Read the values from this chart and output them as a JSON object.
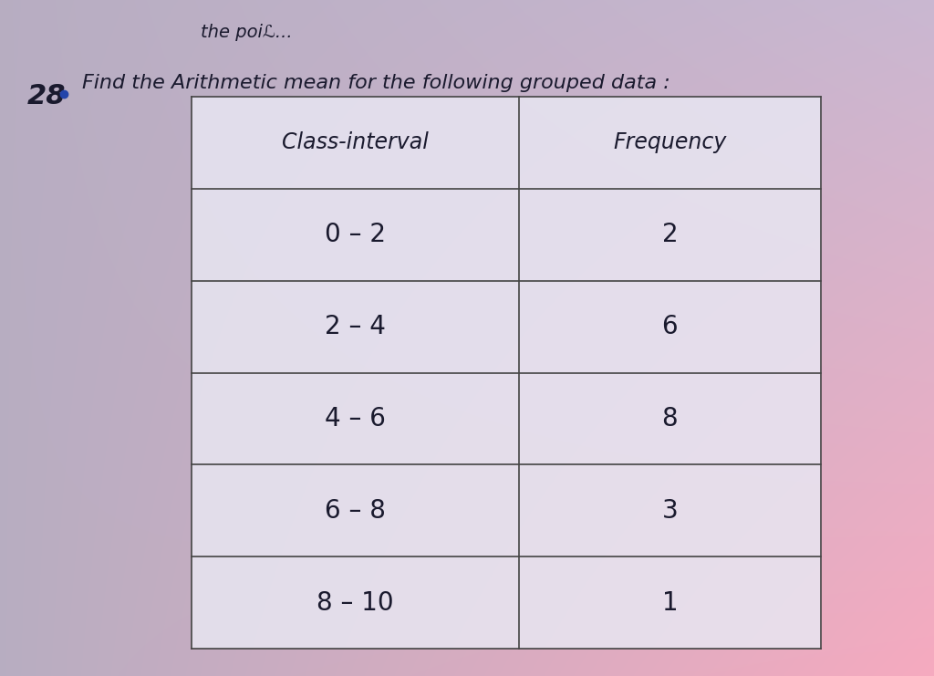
{
  "title_number": "28",
  "title_text": "Find the Arithmetic mean for the following grouped data :",
  "top_text": "the poi",
  "col1_header": "Class-interval",
  "col2_header": "Frequency",
  "rows": [
    [
      "0 – 2",
      "2"
    ],
    [
      "2 – 4",
      "6"
    ],
    [
      "4 – 6",
      "8"
    ],
    [
      "6 – 8",
      "3"
    ],
    [
      "8 – 10",
      "1"
    ]
  ],
  "page_bg": "#d8d4e8",
  "page_bg_left": "#bfbad8",
  "table_bg": "#e8e6f0",
  "text_color": "#1a1a2e",
  "border_color": "#444444",
  "title_fontsize": 16,
  "header_fontsize": 17,
  "cell_fontsize": 20,
  "number_fontsize": 22
}
